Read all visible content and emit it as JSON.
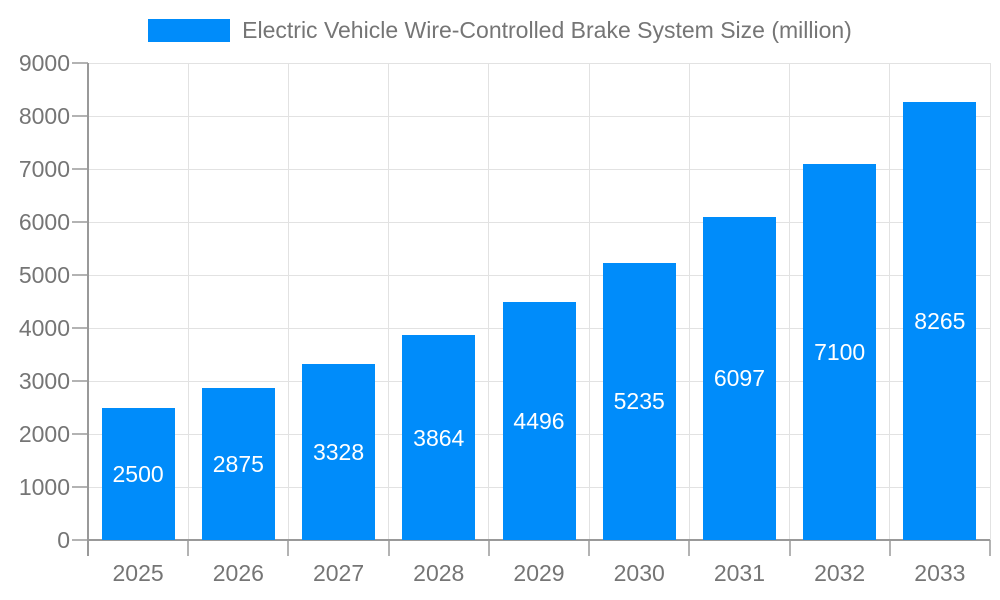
{
  "chart_data": {
    "type": "bar",
    "title": "Electric Vehicle Wire-Controlled Brake System Size (million)",
    "categories": [
      "2025",
      "2026",
      "2027",
      "2028",
      "2029",
      "2030",
      "2031",
      "2032",
      "2033"
    ],
    "series": [
      {
        "name": "Electric Vehicle Wire-Controlled Brake System Size (million)",
        "values": [
          2500,
          2875,
          3328,
          3864,
          4496,
          5235,
          6097,
          7100,
          8265
        ]
      }
    ],
    "xlabel": "",
    "ylabel": "",
    "ylim": [
      0,
      9000
    ],
    "ytick_step": 1000,
    "ytick_labels": [
      "0",
      "1000",
      "2000",
      "3000",
      "4000",
      "5000",
      "6000",
      "7000",
      "8000",
      "9000"
    ],
    "grid": true,
    "legend_position": "top-center",
    "value_label_position": "center-of-bar"
  },
  "colors": {
    "bar": "#008cfa",
    "grid": "#e2e2e2",
    "axis": "#999999",
    "tick": "#b3b3b3",
    "tick_label": "#757575",
    "title_text": "#757575",
    "value_label": "#ffffff",
    "background": "#ffffff"
  }
}
